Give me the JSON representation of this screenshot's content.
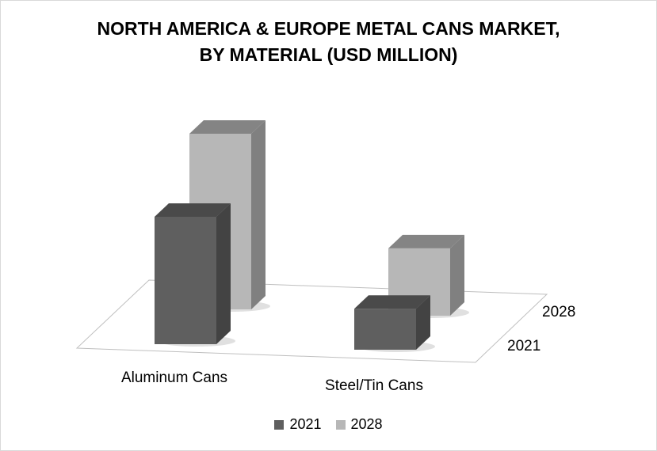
{
  "chart_data": {
    "type": "bar",
    "title_lines": [
      "NORTH AMERICA & EUROPE METAL CANS MARKET,",
      "BY MATERIAL (USD MILLION)"
    ],
    "categories": [
      "Aluminum Cans",
      "Steel/Tin Cans"
    ],
    "depth_labels": [
      "2021",
      "2028"
    ],
    "series": [
      {
        "name": "2021",
        "values": [
          8.7,
          2.8
        ],
        "color": "#5f5f5f"
      },
      {
        "name": "2028",
        "values": [
          12.0,
          4.6
        ],
        "color": "#b7b7b7"
      }
    ],
    "ylim": [
      0,
      12
    ],
    "legend_position": "bottom",
    "grid": false,
    "style": "3d-columns"
  }
}
